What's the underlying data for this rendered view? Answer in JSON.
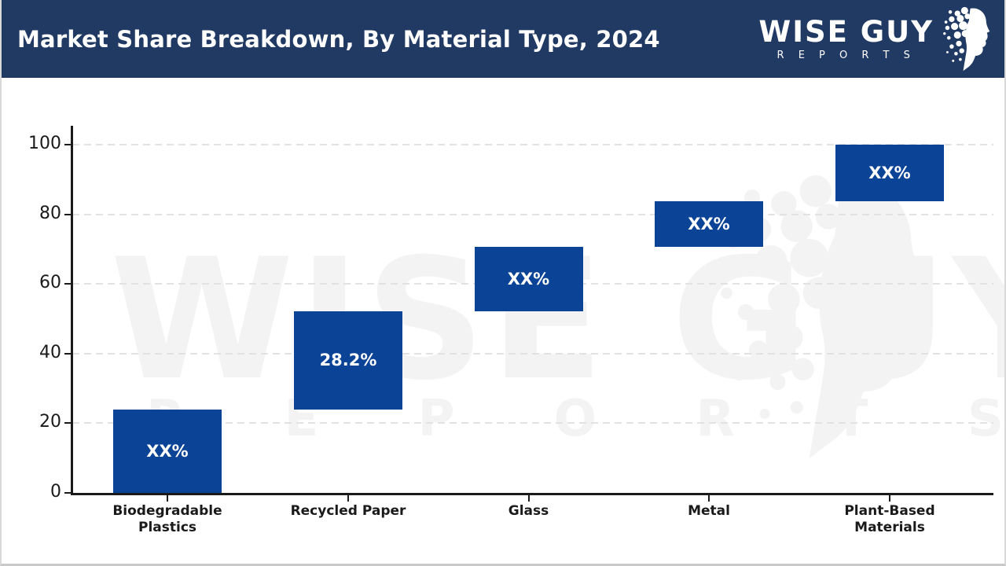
{
  "header": {
    "title": "Market Share Breakdown, By Material Type, 2024",
    "bg_color": "#213a64",
    "logo": {
      "line1": "WISE GUY",
      "line2": "R E P O R T S"
    }
  },
  "watermark": {
    "line1": "WISE GUY",
    "line2": "R E P O R T S"
  },
  "chart_data": {
    "type": "bar",
    "subtype": "waterfall-floating-bars",
    "title": "Market Share Breakdown, By Material Type, 2024",
    "categories": [
      "Biodegradable\nPlastics",
      "Recycled Paper",
      "Glass",
      "Metal",
      "Plant-Based\nMaterials"
    ],
    "segments": [
      {
        "category": "Biodegradable Plastics",
        "start": 0,
        "end": 24,
        "label": "XX%"
      },
      {
        "category": "Recycled Paper",
        "start": 24,
        "end": 52.2,
        "label": "28.2%"
      },
      {
        "category": "Glass",
        "start": 52.2,
        "end": 70.7,
        "label": "XX%"
      },
      {
        "category": "Metal",
        "start": 70.7,
        "end": 83.8,
        "label": "XX%"
      },
      {
        "category": "Plant-Based Materials",
        "start": 83.8,
        "end": 100,
        "label": "XX%"
      }
    ],
    "yticks": [
      0,
      20,
      40,
      60,
      80,
      100
    ],
    "ylim": [
      0,
      105.5
    ],
    "xlabel": "",
    "ylabel": "",
    "grid": "horizontal-dashed",
    "legend": "none",
    "bar_color": "#0b4397",
    "bar_label_color": "#ffffff",
    "axis_color": "#1a1a1a"
  }
}
